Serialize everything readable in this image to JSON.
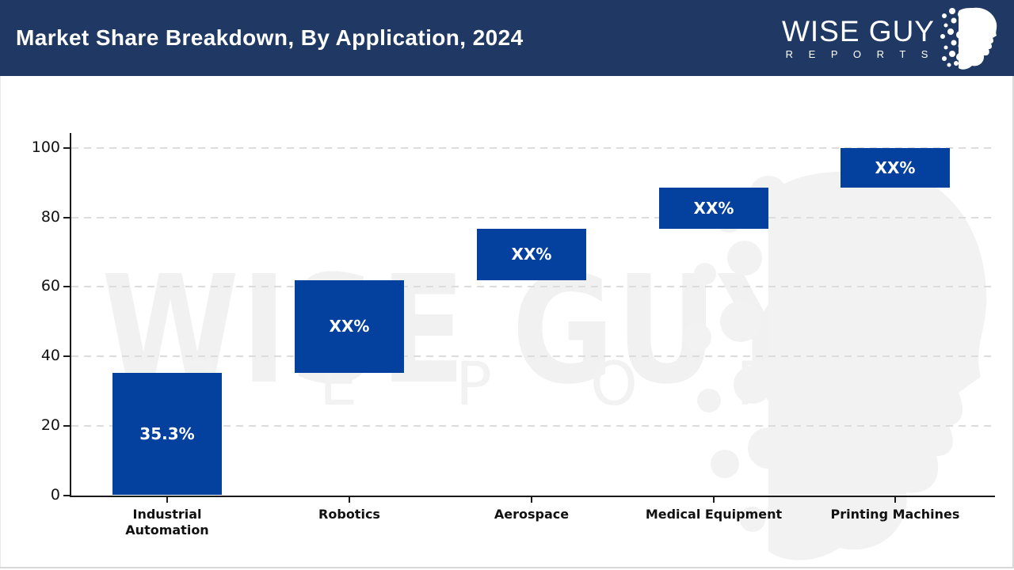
{
  "header": {
    "title": "Market Share Breakdown, By Application, 2024",
    "logo": {
      "name": "WISE GUY",
      "sub": "R E P O R T S"
    }
  },
  "watermark": {
    "name": "WISE GUY",
    "sub": "R E P O R T S"
  },
  "colors": {
    "header_bg": "#1f3864",
    "bar": "#04419e",
    "grid": "#dcdcdc",
    "axis": "#1a1a1a",
    "bar_label_text": "#ffffff",
    "watermark": "#f1f1f1"
  },
  "chart_data": {
    "type": "bar",
    "subtype": "waterfall",
    "title": "Market Share Breakdown, By Application, 2024",
    "categories": [
      "Industrial\nAutomation",
      "Robotics",
      "Aerospace",
      "Medical Equipment",
      "Printing Machines"
    ],
    "segments": [
      {
        "category": "Industrial Automation",
        "label": "35.3%",
        "start": 0,
        "end": 35.3
      },
      {
        "category": "Robotics",
        "label": "XX%",
        "start": 35.3,
        "end": 62
      },
      {
        "category": "Aerospace",
        "label": "XX%",
        "start": 62,
        "end": 76.8
      },
      {
        "category": "Medical Equipment",
        "label": "XX%",
        "start": 76.8,
        "end": 88.5
      },
      {
        "category": "Printing Machines",
        "label": "XX%",
        "start": 88.5,
        "end": 100
      }
    ],
    "yticks": [
      0,
      20,
      40,
      60,
      80,
      100
    ],
    "ylim": [
      0,
      104.5
    ],
    "xlabel": "",
    "ylabel": "",
    "grid": "horizontal-dashed",
    "legend": "none"
  }
}
